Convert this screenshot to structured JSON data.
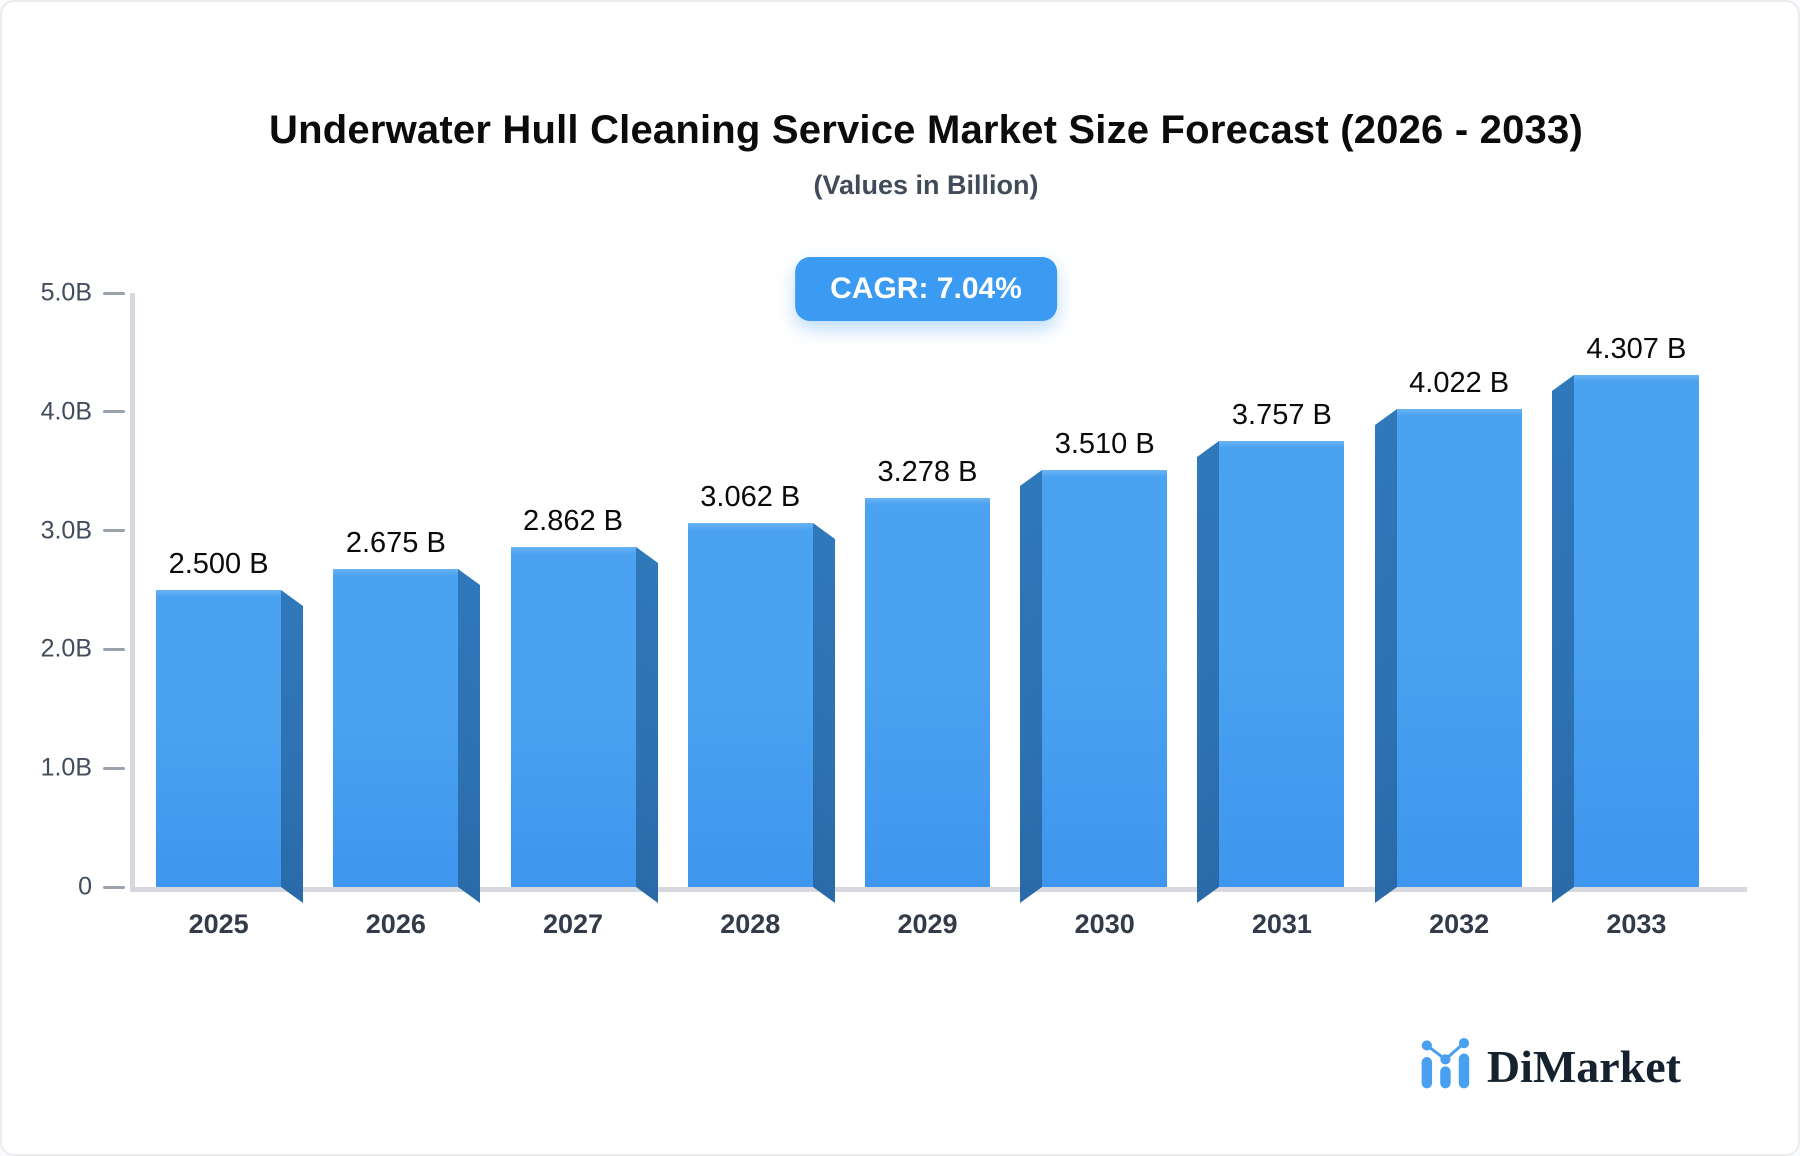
{
  "header": {
    "title": "Underwater Hull Cleaning Service Market Size Forecast (2026 - 2033)",
    "subtitle": "(Values in Billion)",
    "cagr_badge": "CAGR: 7.04%"
  },
  "chart_data": {
    "type": "bar",
    "title": "Underwater Hull Cleaning Service Market Size Forecast (2026 - 2033)",
    "subtitle": "(Values in Billion)",
    "annotation": "CAGR: 7.04%",
    "categories": [
      "2025",
      "2026",
      "2027",
      "2028",
      "2029",
      "2030",
      "2031",
      "2032",
      "2033"
    ],
    "values": [
      2.5,
      2.675,
      2.862,
      3.062,
      3.278,
      3.51,
      3.757,
      4.022,
      4.307
    ],
    "value_labels": [
      "2.500 B",
      "2.675 B",
      "2.862 B",
      "3.062 B",
      "3.278 B",
      "3.510 B",
      "3.757 B",
      "4.022 B",
      "4.307 B"
    ],
    "xlabel": "",
    "ylabel": "",
    "ylim": [
      0,
      5
    ],
    "ytick_labels": [
      "0",
      "1.0B",
      "2.0B",
      "3.0B",
      "4.0B",
      "5.0B"
    ],
    "grid": "off",
    "legend": "none",
    "style": "3d-bars, side bevel faces toward center bar",
    "colors": {
      "bar_face": "#4ba2f0",
      "bar_face_light": "#6ab4f5",
      "bar_face_dark": "#3e96ee",
      "bar_side": "#2d72b2",
      "badge_bg": "#3b9af2",
      "axis": "#d6d8dd",
      "tick": "#9aa2ae"
    }
  },
  "branding": {
    "logo_text": "DiMarket",
    "logo_icon": "bar-line-chart-icon",
    "logo_color": "#4aa0f0"
  }
}
